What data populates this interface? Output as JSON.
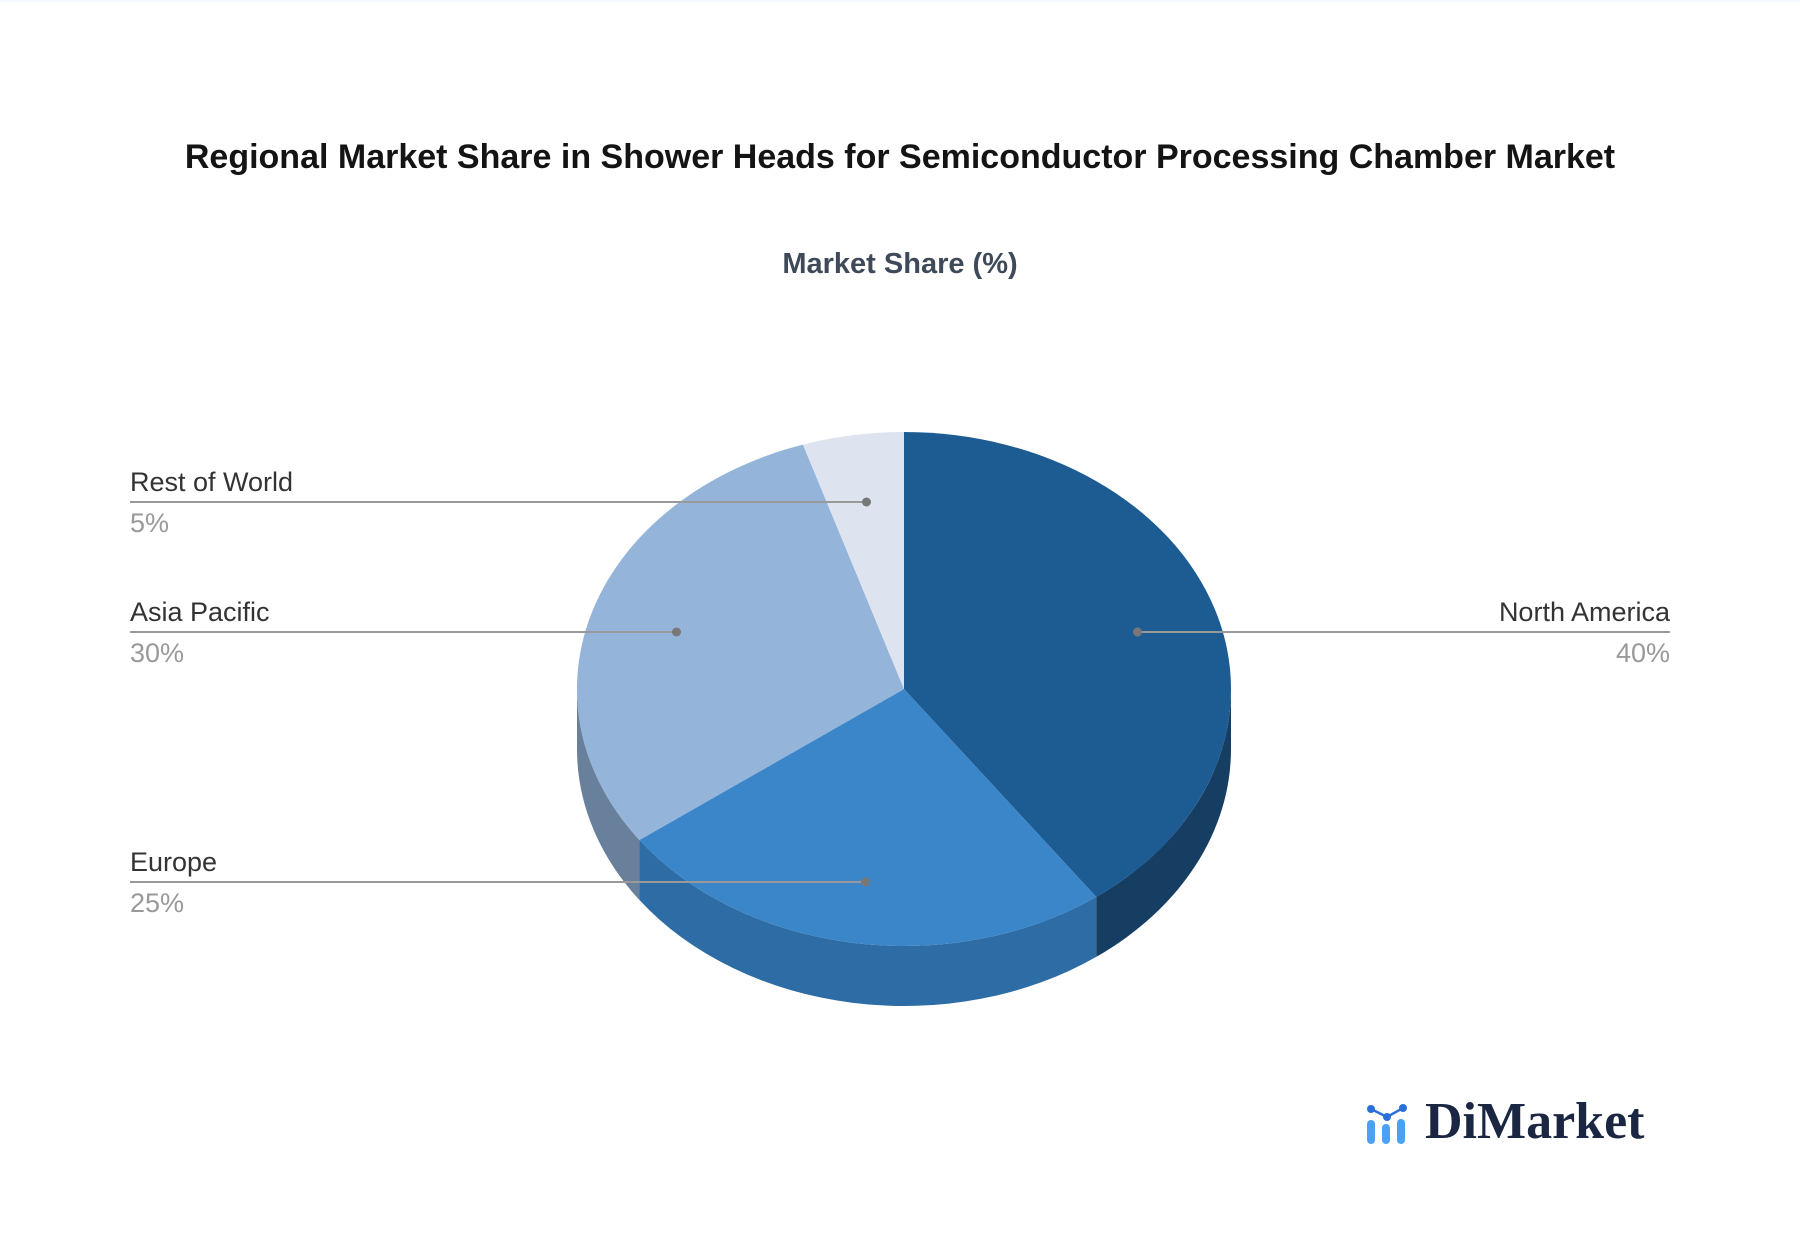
{
  "header": {
    "title": "Regional Market Share in Shower Heads for Semiconductor Processing Chamber Market",
    "subtitle": "Market Share (%)"
  },
  "chart_data": {
    "type": "pie",
    "title": "Regional Market Share in Shower Heads for Semiconductor Processing Chamber Market",
    "subtitle": "Market Share (%)",
    "unit": "%",
    "style": "3d-pie",
    "start_angle_deg": 0,
    "direction": "clockwise",
    "legend_position": "callout-leader-lines",
    "slices": [
      {
        "label": "North America",
        "value": 40,
        "pct_label": "40%",
        "color": "#1d5b93",
        "side_color": "#163e63",
        "label_side": "right"
      },
      {
        "label": "Europe",
        "value": 25,
        "pct_label": "25%",
        "color": "#3a86c8",
        "side_color": "#2d6ca5",
        "label_side": "left"
      },
      {
        "label": "Asia Pacific",
        "value": 30,
        "pct_label": "30%",
        "color": "#94b4d9",
        "side_color": "#68809b",
        "label_side": "left"
      },
      {
        "label": "Rest of World",
        "value": 5,
        "pct_label": "5%",
        "color": "#dde4ef",
        "side_color": "#b9c6d8",
        "label_side": "left"
      }
    ],
    "colors": {
      "leader_line": "#999999",
      "leader_dot": "#787878",
      "label_text": "#333333",
      "percent_text": "#999999",
      "title_text": "#141414",
      "subtitle_text": "#3e4a59"
    }
  },
  "logo": {
    "text": "DiMarket",
    "text_color": "#1b2742",
    "bar_color": "#4ba1f4",
    "dot_color": "#2b6fd9"
  }
}
